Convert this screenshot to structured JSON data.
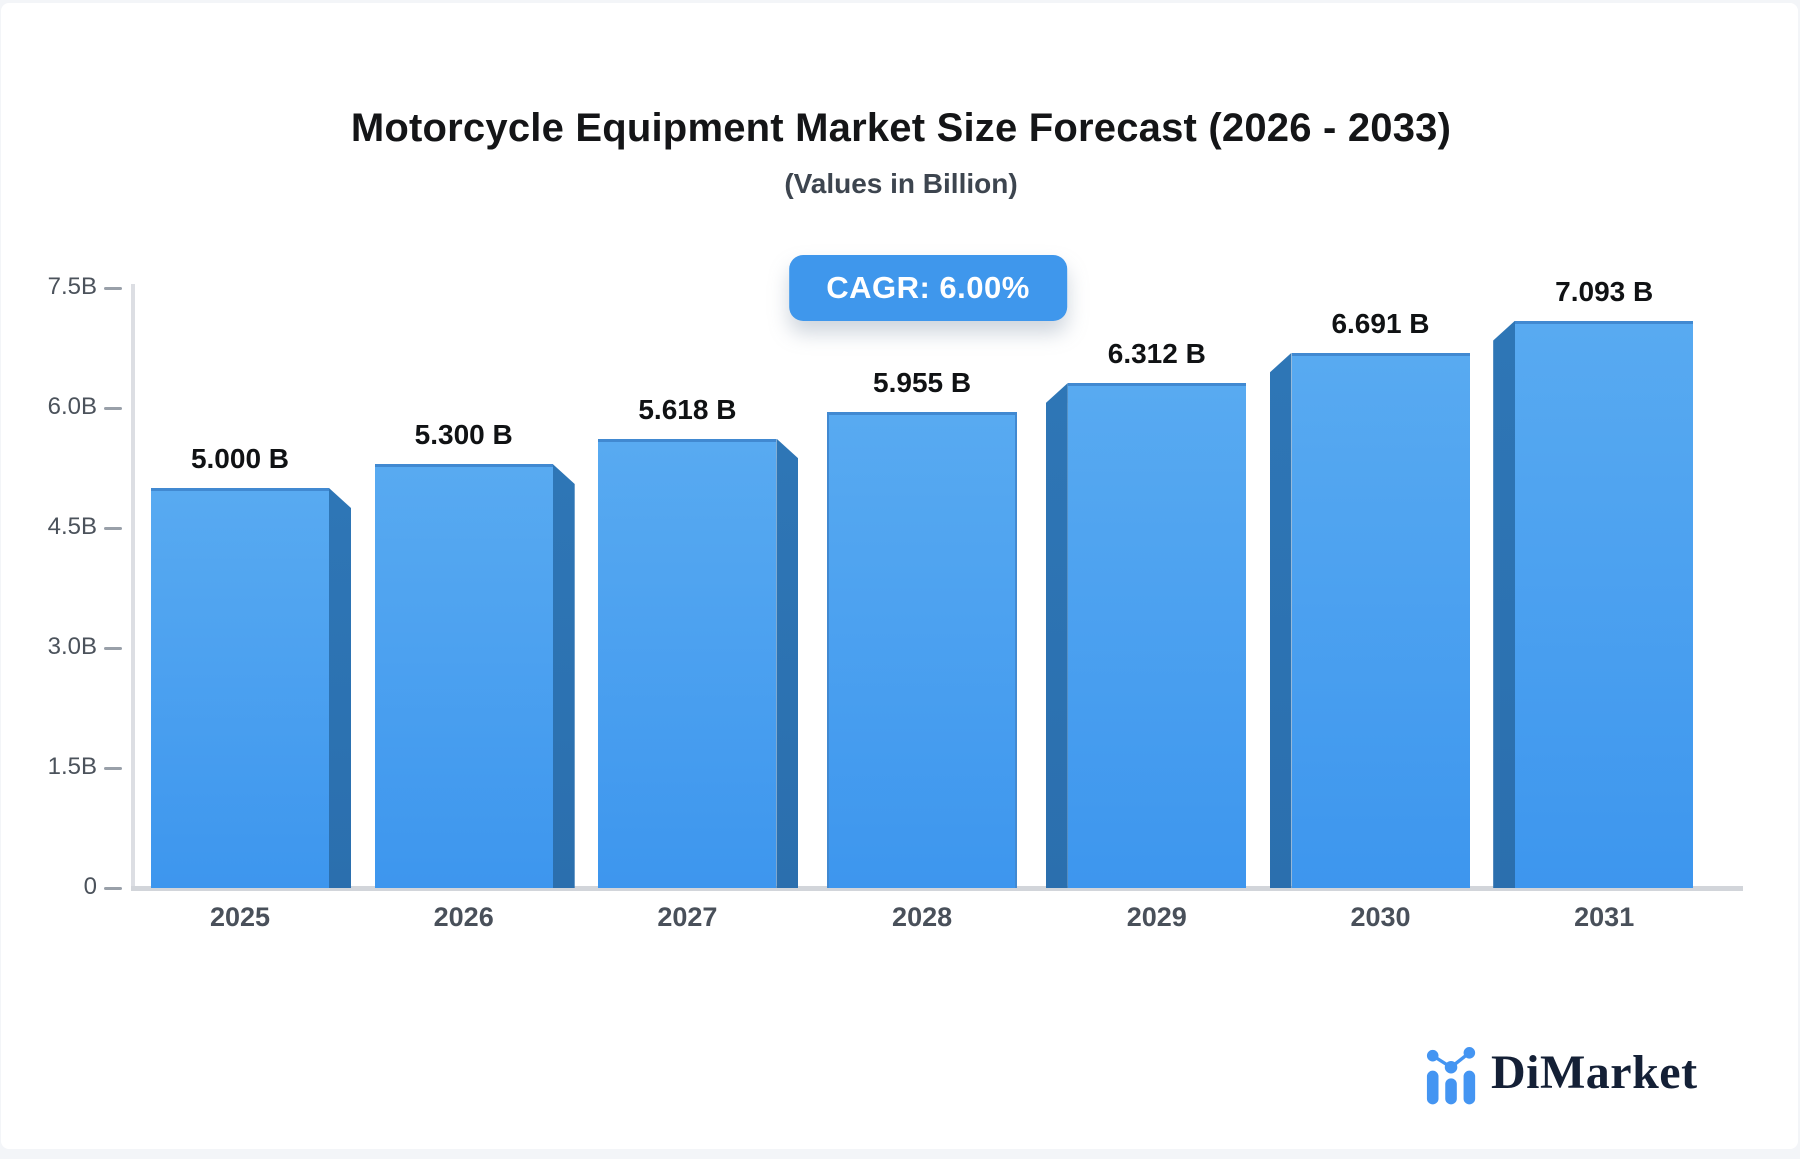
{
  "chart_data": {
    "type": "bar",
    "title": "Motorcycle Equipment Market Size Forecast (2026 - 2033)",
    "subtitle": "(Values in Billion)",
    "cagr_badge": "CAGR: 6.00%",
    "categories": [
      "2025",
      "2026",
      "2027",
      "2028",
      "2029",
      "2030",
      "2031"
    ],
    "values": [
      5.0,
      5.3,
      5.618,
      5.955,
      6.312,
      6.691,
      7.093
    ],
    "bar_labels": [
      "5.000 B",
      "5.300 B",
      "5.618 B",
      "5.955 B",
      "6.312 B",
      "6.691 B",
      "7.093 B"
    ],
    "xlabel": "",
    "ylabel": "",
    "ylim": [
      0,
      7.5
    ],
    "yticks": [
      {
        "value": 0,
        "label": "0"
      },
      {
        "value": 1.5,
        "label": "1.5B"
      },
      {
        "value": 3.0,
        "label": "3.0B"
      },
      {
        "value": 4.5,
        "label": "4.5B"
      },
      {
        "value": 6.0,
        "label": "6.0B"
      },
      {
        "value": 7.5,
        "label": "7.5B"
      }
    ],
    "legend": "none",
    "grid": "off",
    "colors": {
      "bar_face_top": "#58aaf1",
      "bar_face_bottom": "#3d96ee",
      "bar_face_edge": "#4189d1",
      "bar_side": "#2e76b6",
      "badge_bg": "#3f97ec",
      "axis_line": "#dcdee3",
      "baseline": "#d2d5da"
    }
  },
  "logo": {
    "text": "DiMarket",
    "icon": "bar-chart-logo-icon",
    "text_color": "#142036",
    "icon_color": "#4495f2"
  }
}
